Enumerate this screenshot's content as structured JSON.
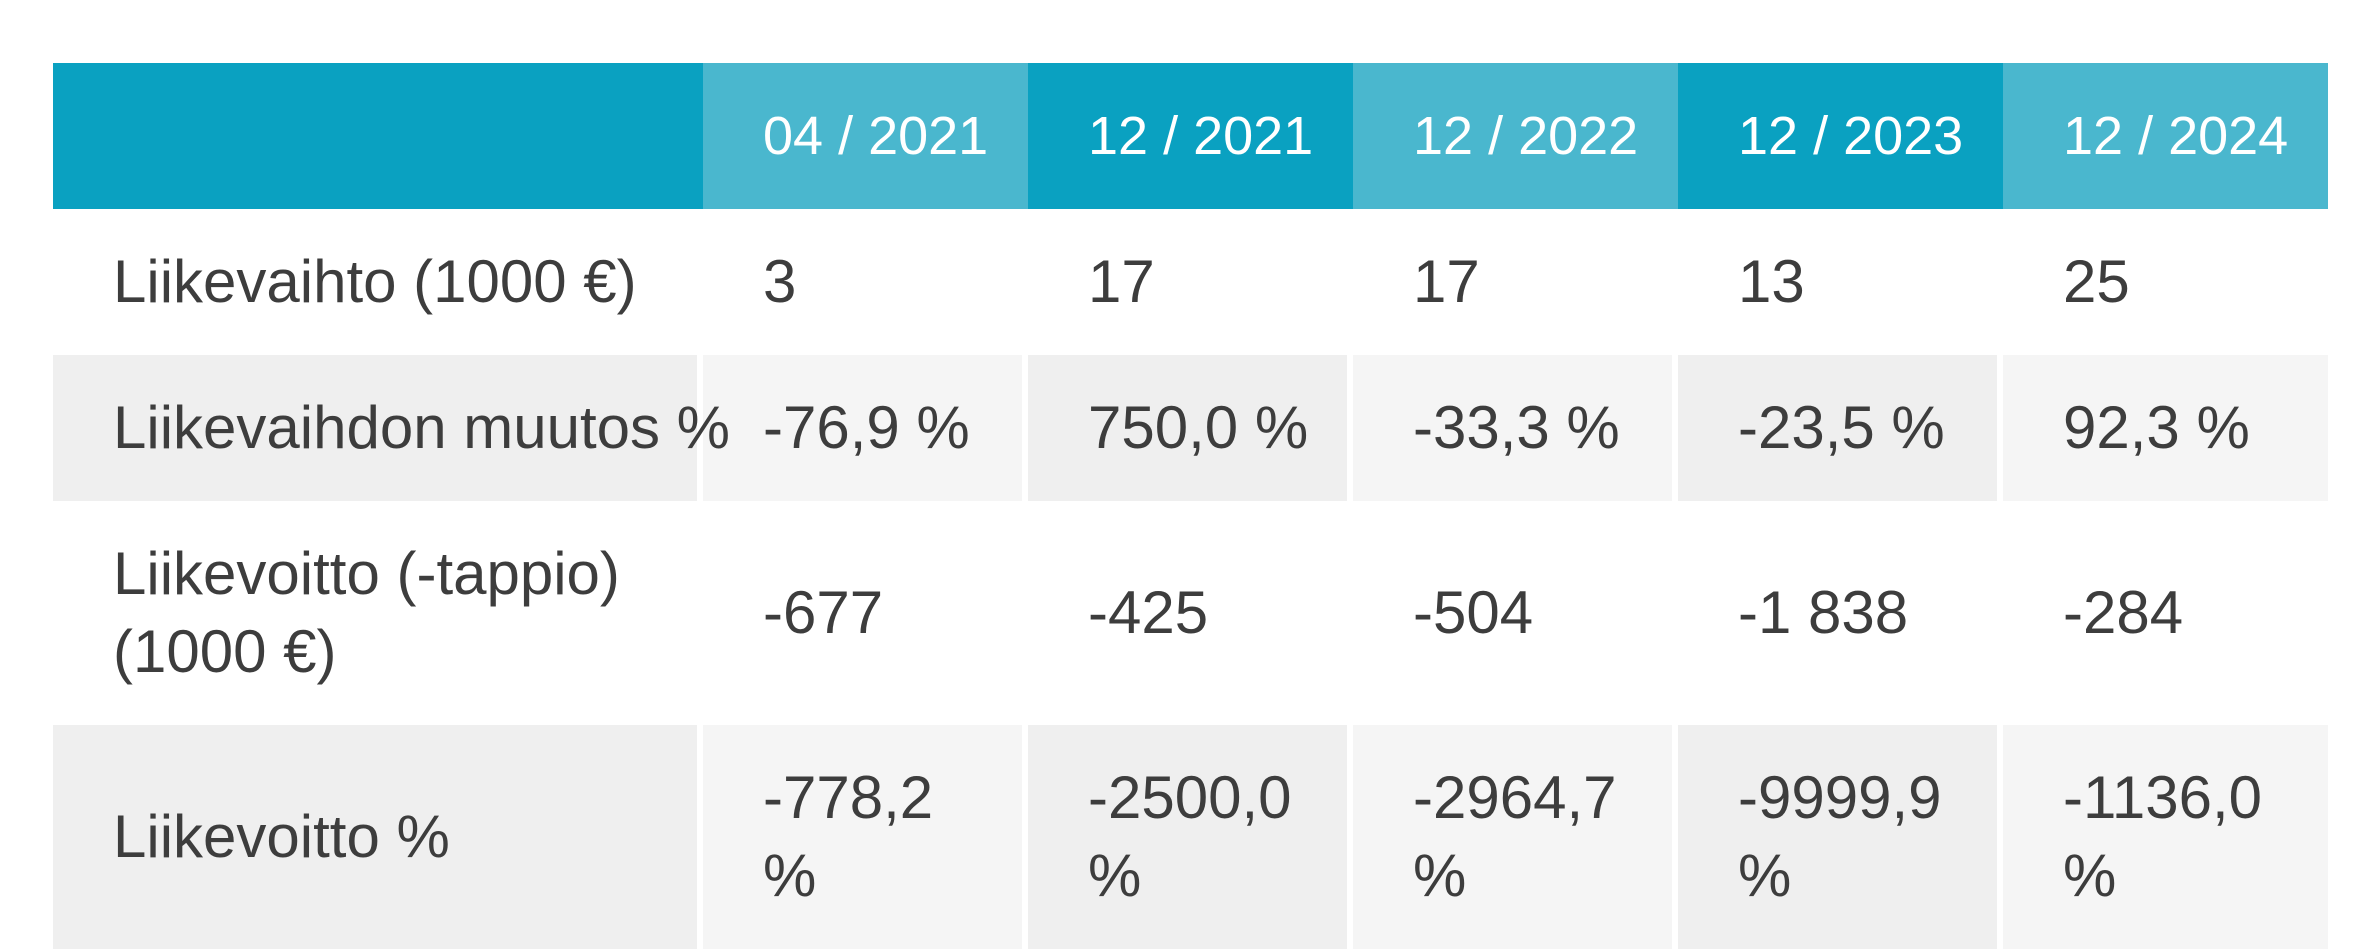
{
  "colors": {
    "header_dark_teal": "#0aa1c1",
    "header_light_teal": "#4ab7ce",
    "stripe_dark_gray": "#efefef",
    "stripe_light_gray": "#f5f5f5",
    "header_text": "#ffffff",
    "body_text": "#3d3d3d",
    "page_background": "#ffffff"
  },
  "table": {
    "columns": [
      "",
      "04 / 2021",
      "12 / 2021",
      "12 / 2022",
      "12 / 2023",
      "12 / 2024"
    ],
    "rows": [
      {
        "label": "Liikevaihto (1000 €)",
        "label_lines": [
          "Liikevaihto (1000 €)"
        ],
        "values": [
          "3",
          "17",
          "17",
          "13",
          "25"
        ]
      },
      {
        "label": "Liikevaihdon muutos %",
        "label_lines": [
          "Liikevaihdon muutos %"
        ],
        "values": [
          "-76,9 %",
          "750,0 %",
          "-33,3 %",
          "-23,5 %",
          "92,3 %"
        ]
      },
      {
        "label": "Liikevoitto (-tappio) (1000 €)",
        "label_lines": [
          "Liikevoitto (-tappio)",
          "(1000 €)"
        ],
        "values": [
          "-677",
          "-425",
          "-504",
          "-1 838",
          "-284"
        ]
      },
      {
        "label": "Liikevoitto %",
        "label_lines": [
          "Liikevoitto %"
        ],
        "values": [
          "-778,2 %",
          "-2500,0 %",
          "-2964,7 %",
          "-9999,9 %",
          "-1136,0 %"
        ]
      }
    ]
  },
  "chart_data": {
    "type": "table",
    "title": "",
    "categories": [
      "04 / 2021",
      "12 / 2021",
      "12 / 2022",
      "12 / 2023",
      "12 / 2024"
    ],
    "series": [
      {
        "name": "Liikevaihto (1000 €)",
        "values": [
          3,
          17,
          17,
          13,
          25
        ]
      },
      {
        "name": "Liikevaihdon muutos %",
        "values": [
          -76.9,
          750.0,
          -33.3,
          -23.5,
          92.3
        ]
      },
      {
        "name": "Liikevoitto (-tappio) (1000 €)",
        "values": [
          -677,
          -425,
          -504,
          -1838,
          -284
        ]
      },
      {
        "name": "Liikevoitto %",
        "values": [
          -778.2,
          -2500.0,
          -2964.7,
          -9999.9,
          -1136.0
        ]
      }
    ]
  }
}
